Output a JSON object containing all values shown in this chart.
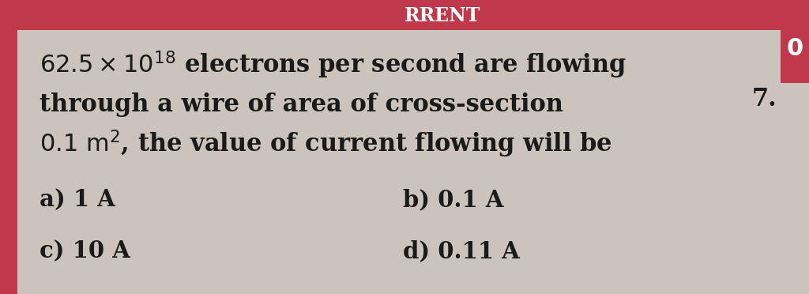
{
  "bg_color": "#ccc4bc",
  "header_color": "#c0394b",
  "header_text": "RRENT",
  "question_number": "7.",
  "text_color": "#1a1a1a",
  "right_box_color": "#c0394b",
  "right_box_text": "0",
  "right_box_text_color": "#ffffff",
  "main_font_size": 22,
  "option_font_size": 21,
  "option_a": "a) 1 A",
  "option_b": "b) 0.1 A",
  "option_c": "c) 10 A",
  "option_d": "d) 0.11 A"
}
